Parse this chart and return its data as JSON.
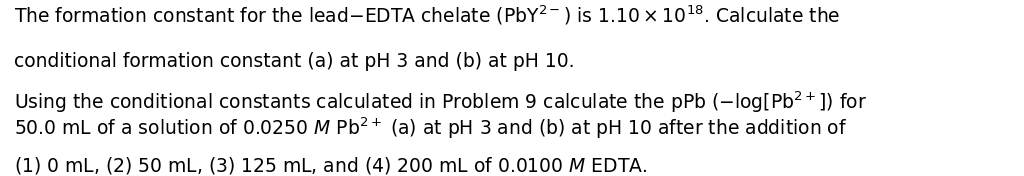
{
  "background_color": "#ffffff",
  "text_color": "#000000",
  "font_size": 13.5,
  "figsize": [
    10.24,
    1.76
  ],
  "dpi": 100,
  "line1_parts": [
    {
      "text": "The formation constant for the lead–EDTA chelate (PbY",
      "style": "normal"
    },
    {
      "text": "2−",
      "style": "superscript"
    },
    {
      "text": ") is 1.10 × 10",
      "style": "normal"
    },
    {
      "text": "18",
      "style": "superscript"
    },
    {
      "text": ". Calculate the",
      "style": "normal"
    }
  ],
  "line2": "conditional formation constant (a) at pH 3 and (b) at pH 10.",
  "line3_parts": [
    {
      "text": "Using the conditional constants calculated in Problem 9 calculate the pPb (−log[Pb",
      "style": "normal"
    },
    {
      "text": "2+",
      "style": "superscript"
    },
    {
      "text": "]) for",
      "style": "normal"
    }
  ],
  "line4_parts": [
    {
      "text": "50.0 mL of a solution of 0.0250 ",
      "style": "normal"
    },
    {
      "text": "M",
      "style": "italic"
    },
    {
      "text": " Pb",
      "style": "normal"
    },
    {
      "text": "2+",
      "style": "superscript"
    },
    {
      "text": " (a) at pH 3 and (b) at pH 10 after the addition of",
      "style": "normal"
    }
  ],
  "line5_parts": [
    {
      "text": "(1) 0 mL, (2) 50 mL, (3) 125 mL, and (4) 200 mL of 0.0100 ",
      "style": "normal"
    },
    {
      "text": "M",
      "style": "italic"
    },
    {
      "text": " EDTA.",
      "style": "normal"
    }
  ]
}
